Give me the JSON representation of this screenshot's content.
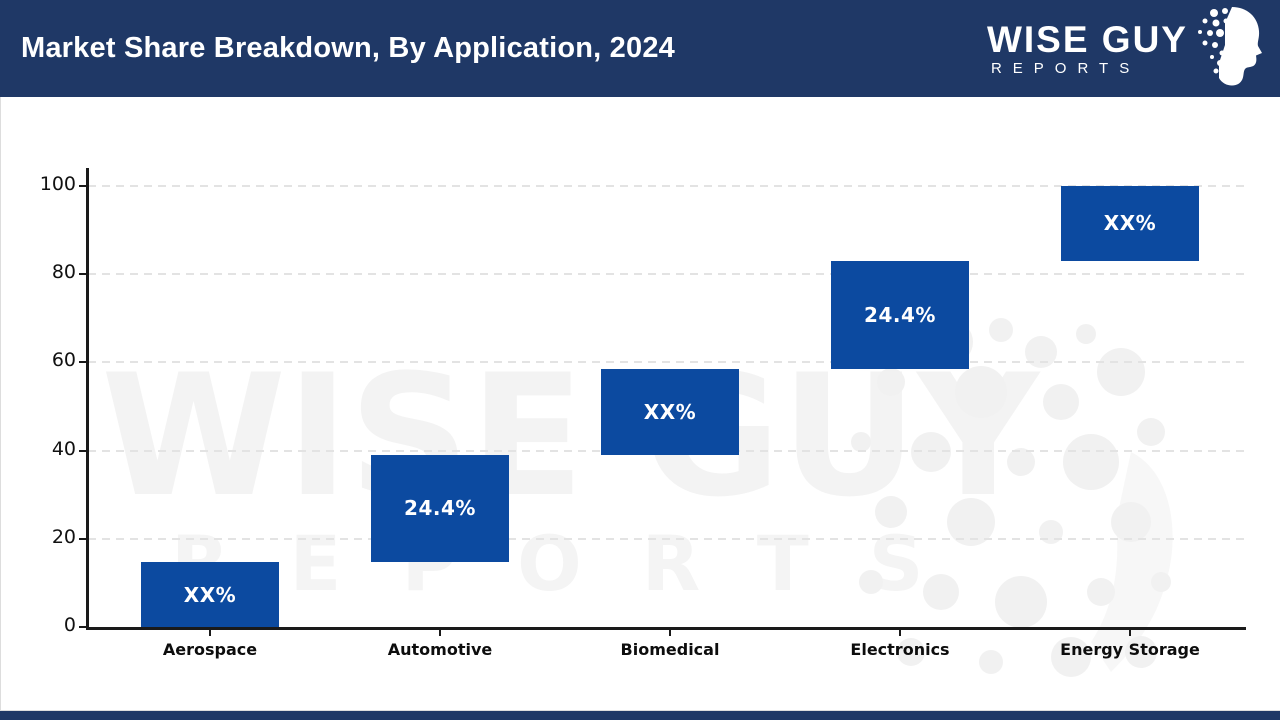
{
  "header": {
    "title": "Market Share Breakdown, By Application, 2024",
    "logo": {
      "line1": "WISE GUY",
      "line2": "REPORTS"
    }
  },
  "watermark": {
    "line1": "WISE GUY",
    "line2": "REPORTS"
  },
  "colors": {
    "header_navy": "#1f3866",
    "footer_navy": "#1f3866",
    "bar_blue": "#0c4aa0",
    "bar_label_text": "#ffffff",
    "axis": "#1a1a1a",
    "gridline": "#e3e3e3",
    "watermark_gray": "#f3f3f3",
    "title_text": "#ffffff"
  },
  "chart_data": {
    "type": "bar",
    "subtype": "floating-waterfall",
    "title": "Market Share Breakdown, By Application, 2024",
    "categories": [
      "Aerospace",
      "Automotive",
      "Biomedical",
      "Electronics",
      "Energy Storage"
    ],
    "segments": [
      {
        "category": "Aerospace",
        "start": 0,
        "end": 14.7,
        "label": "XX%"
      },
      {
        "category": "Automotive",
        "start": 14.7,
        "end": 39.1,
        "label": "24.4%"
      },
      {
        "category": "Biomedical",
        "start": 39.1,
        "end": 58.6,
        "label": "XX%"
      },
      {
        "category": "Electronics",
        "start": 58.6,
        "end": 83.0,
        "label": "24.4%"
      },
      {
        "category": "Energy Storage",
        "start": 83.0,
        "end": 100,
        "label": "XX%"
      }
    ],
    "xlabel": "",
    "ylabel": "",
    "yticks": [
      0,
      20,
      40,
      60,
      80,
      100
    ],
    "ylim": [
      0,
      100
    ],
    "grid": "horizontal-dashed",
    "legend": "none",
    "bar_color": "#0c4aa0"
  }
}
